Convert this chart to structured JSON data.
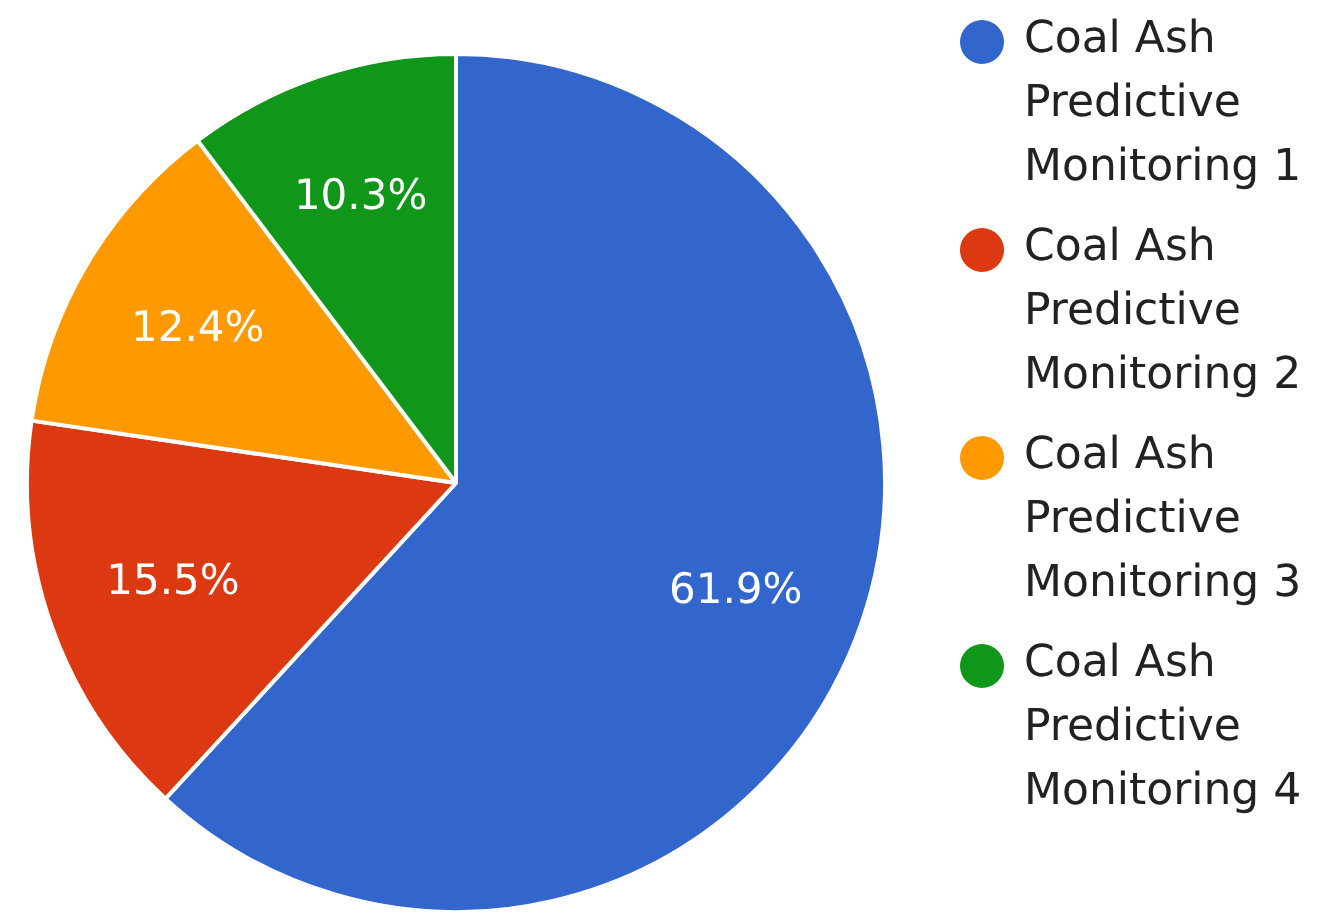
{
  "chart_data": {
    "type": "pie",
    "categories": [
      "Coal Ash Predictive Monitoring 1",
      "Coal Ash Predictive Monitoring 2",
      "Coal Ash Predictive Monitoring 3",
      "Coal Ash Predictive Monitoring 4"
    ],
    "values": [
      61.9,
      15.5,
      12.4,
      10.3
    ],
    "colors": [
      "#3366cc",
      "#dc3912",
      "#ff9900",
      "#109618"
    ],
    "value_labels": [
      "61.9%",
      "15.5%",
      "12.4%",
      "10.3%"
    ],
    "legend": "right"
  }
}
